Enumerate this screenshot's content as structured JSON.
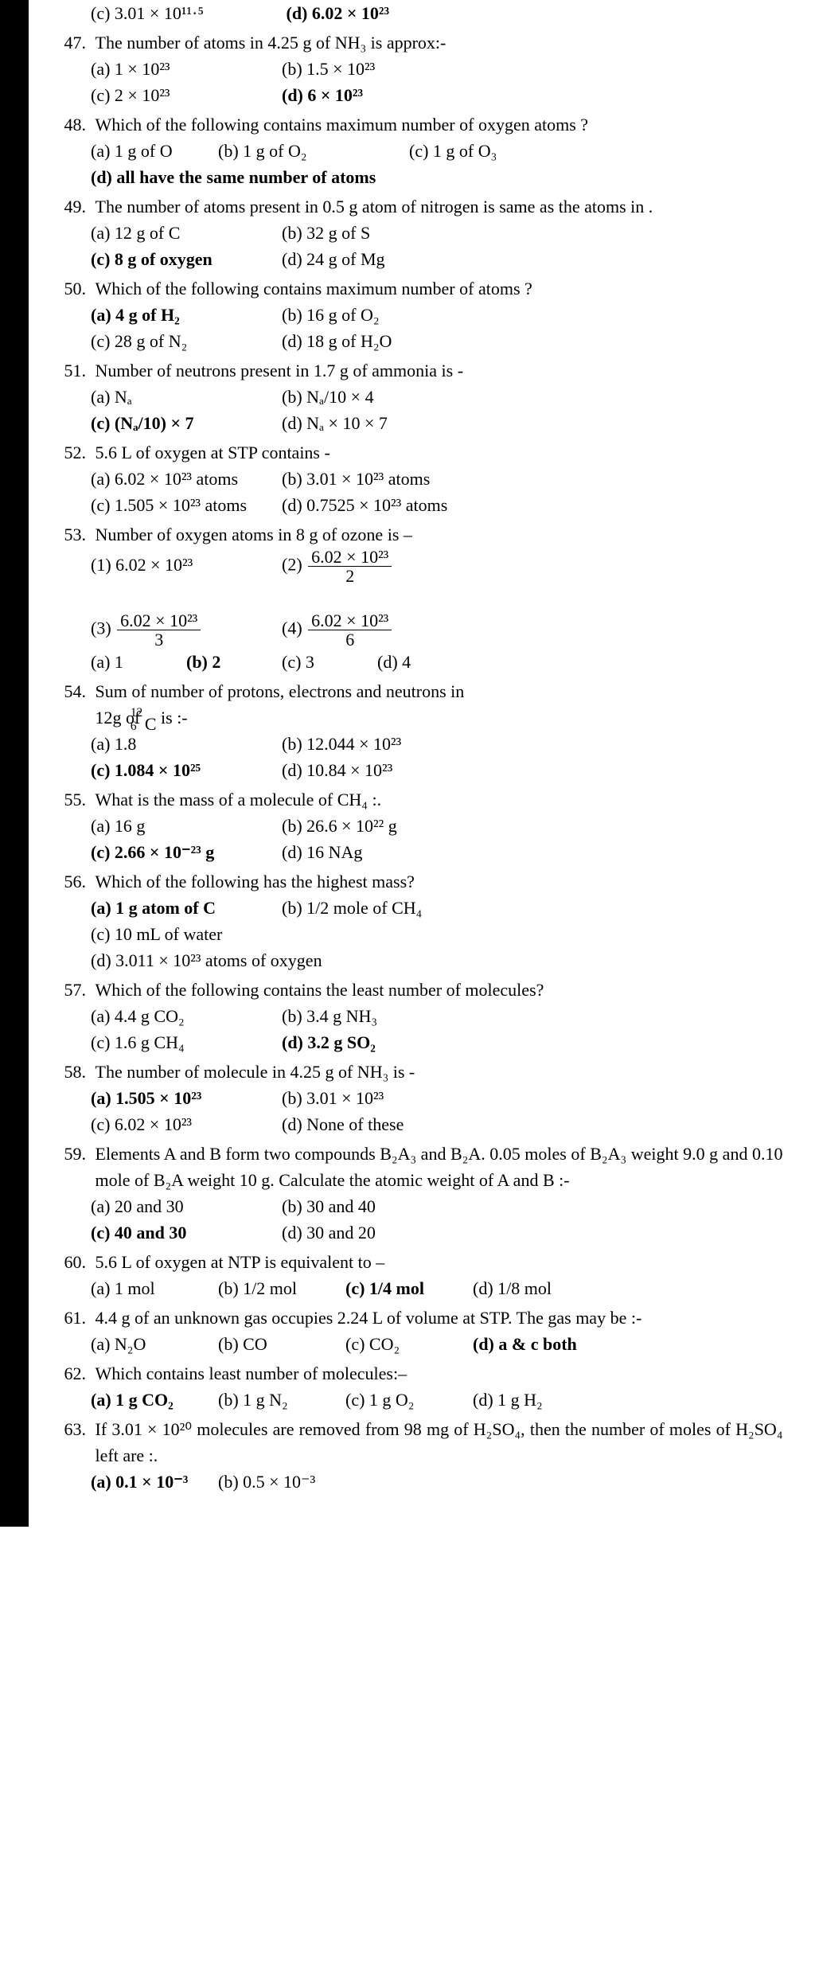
{
  "partial": {
    "opts": [
      {
        "label": "(c) 3.01 × 10¹¹·⁵",
        "bold": false
      },
      {
        "label": "(d) 6.02 × 10²³",
        "bold": true
      }
    ]
  },
  "q47": {
    "num": "47.",
    "text": "The number of atoms in 4.25 g of NH₃ is approx:-",
    "opts": [
      {
        "label": "(a) 1 × 10²³",
        "bold": false
      },
      {
        "label": "(b) 1.5 × 10²³",
        "bold": false
      },
      {
        "label": "(c) 2 × 10²³",
        "bold": false
      },
      {
        "label": "(d) 6 × 10²³",
        "bold": true
      }
    ]
  },
  "q48": {
    "num": "48.",
    "text": "Which of the following contains maximum number of oxygen atoms ?",
    "opts": [
      {
        "label": "(a) 1 g of O",
        "bold": false,
        "narrow": true
      },
      {
        "label": "(b) 1 g of O₂",
        "bold": false
      },
      {
        "label": "(c) 1 g of O₃",
        "bold": false,
        "narrow": true
      },
      {
        "label": "(d) all have the same number of atoms",
        "bold": true
      }
    ]
  },
  "q49": {
    "num": "49.",
    "text": "The number of atoms present in 0.5 g atom of nitrogen is same as the atoms in .",
    "opts": [
      {
        "label": "(a) 12 g of C",
        "bold": false
      },
      {
        "label": "(b) 32 g of S",
        "bold": false
      },
      {
        "label": "(c) 8 g of oxygen",
        "bold": true
      },
      {
        "label": "(d) 24 g of Mg",
        "bold": false
      }
    ]
  },
  "q50": {
    "num": "50.",
    "text": "Which of the following contains maximum number of atoms ?",
    "opts": [
      {
        "label": "(a) 4 g of H₂",
        "bold": true
      },
      {
        "label": "(b) 16 g of O₂",
        "bold": false
      },
      {
        "label": "(c) 28 g of N₂",
        "bold": false
      },
      {
        "label": "(d) 18 g of H₂O",
        "bold": false
      }
    ]
  },
  "q51": {
    "num": "51.",
    "text": "Number of neutrons present in 1.7 g of ammonia is -",
    "opts": [
      {
        "label": "(a) Nₐ",
        "bold": false
      },
      {
        "label": "(b) Nₐ/10 × 4",
        "bold": false
      },
      {
        "label": "(c) (Nₐ/10) × 7",
        "bold": true
      },
      {
        "label": "(d) Nₐ × 10 × 7",
        "bold": false
      }
    ]
  },
  "q52": {
    "num": "52.",
    "text": "5.6 L of oxygen at STP contains -",
    "opts": [
      {
        "label": "(a) 6.02 × 10²³ atoms",
        "bold": false,
        "wide": true
      },
      {
        "label": "(b) 3.01 × 10²³ atoms",
        "bold": false
      },
      {
        "label": "(c) 1.505 × 10²³ atoms",
        "bold": false,
        "wide": true
      },
      {
        "label": "(d) 0.7525 × 10²³ atoms",
        "bold": false
      }
    ]
  },
  "q53": {
    "num": "53.",
    "text": "Number of oxygen atoms in 8 g of ozone is –",
    "frac_opts": [
      {
        "pre": "(1) 6.02 × 10²³",
        "num": "",
        "den": ""
      },
      {
        "pre": "(2) ",
        "num": "6.02 × 10²³",
        "den": "2"
      },
      {
        "pre": "(3) ",
        "num": "6.02 × 10²³",
        "den": "3"
      },
      {
        "pre": "(4) ",
        "num": "6.02 × 10²³",
        "den": "6"
      }
    ],
    "answers": [
      {
        "label": "(a) 1",
        "bold": false
      },
      {
        "label": "(b) 2",
        "bold": true
      },
      {
        "label": "(c) 3",
        "bold": false
      },
      {
        "label": "(d) 4",
        "bold": false
      }
    ]
  },
  "q54": {
    "num": "54.",
    "text1": "Sum of number of protons, electrons and neutrons in",
    "text2a": "12g of ",
    "isotope_mass": "12",
    "isotope_z": "6",
    "isotope_el": "C",
    "text2b": " is :-",
    "opts": [
      {
        "label": "(a) 1.8",
        "bold": false
      },
      {
        "label": "(b) 12.044 × 10²³",
        "bold": false
      },
      {
        "label": "(c) 1.084 × 10²⁵",
        "bold": true
      },
      {
        "label": "(d) 10.84 × 10²³",
        "bold": false
      }
    ]
  },
  "q55": {
    "num": "55.",
    "text": "What is the mass of a molecule of CH₄ :.",
    "opts": [
      {
        "label": "(a) 16 g",
        "bold": false
      },
      {
        "label": "(b) 26.6 × 10²² g",
        "bold": false
      },
      {
        "label": "(c) 2.66 × 10⁻²³ g",
        "bold": true
      },
      {
        "label": "(d) 16 NAg",
        "bold": false
      }
    ]
  },
  "q56": {
    "num": "56.",
    "text": "Which of the following has the highest mass?",
    "opts": [
      {
        "label": "(a) 1 g atom of C",
        "bold": true
      },
      {
        "label": "(b) 1/2 mole of CH₄",
        "bold": false
      },
      {
        "label": "(c) 10 mL of water",
        "bold": false,
        "full": true
      },
      {
        "label": "(d) 3.011 × 10²³ atoms of oxygen",
        "bold": false,
        "full": true
      }
    ]
  },
  "q57": {
    "num": "57.",
    "text": "Which of the following contains the least number of molecules?",
    "opts": [
      {
        "label": "(a) 4.4 g CO₂",
        "bold": false
      },
      {
        "label": "(b) 3.4 g NH₃",
        "bold": false
      },
      {
        "label": "(c) 1.6 g CH₄",
        "bold": false
      },
      {
        "label": "(d) 3.2 g SO₂",
        "bold": true
      }
    ]
  },
  "q58": {
    "num": "58.",
    "text": "The number of molecule in 4.25 g of NH₃ is -",
    "opts": [
      {
        "label": "(a) 1.505 × 10²³",
        "bold": true
      },
      {
        "label": "(b) 3.01 × 10²³",
        "bold": false
      },
      {
        "label": "(c) 6.02 × 10²³",
        "bold": false
      },
      {
        "label": "(d) None of these",
        "bold": false
      }
    ]
  },
  "q59": {
    "num": "59.",
    "text": "Elements A and B form two compounds B₂A₃ and B₂A. 0.05 moles of B₂A₃ weight 9.0 g and 0.10 mole of B₂A weight 10 g. Calculate the atomic weight of A and B :-",
    "opts": [
      {
        "label": "(a) 20 and 30",
        "bold": false
      },
      {
        "label": "(b) 30 and 40",
        "bold": false
      },
      {
        "label": "(c) 40 and 30",
        "bold": true
      },
      {
        "label": "(d) 30 and 20",
        "bold": false
      }
    ]
  },
  "q60": {
    "num": "60.",
    "text": "5.6 L of oxygen at NTP is equivalent to –",
    "opts": [
      {
        "label": "(a) 1 mol",
        "bold": false,
        "narrow": true
      },
      {
        "label": "(b) 1/2 mol",
        "bold": false,
        "narrow": true
      },
      {
        "label": "(c) 1/4 mol",
        "bold": true,
        "narrow": true
      },
      {
        "label": "(d) 1/8 mol",
        "bold": false,
        "narrow": true
      }
    ]
  },
  "q61": {
    "num": "61.",
    "text": "4.4 g of an unknown gas occupies 2.24 L of volume at STP. The gas may be :-",
    "opts": [
      {
        "label": "(a) N₂O",
        "bold": false,
        "narrow": true
      },
      {
        "label": "(b) CO",
        "bold": false,
        "narrow": true
      },
      {
        "label": "(c) CO₂",
        "bold": false,
        "narrow": true
      },
      {
        "label": "(d) a & c both",
        "bold": true,
        "narrow": true
      }
    ]
  },
  "q62": {
    "num": "62.",
    "text": "Which contains least number of molecules:–",
    "opts": [
      {
        "label": "(a) 1 g CO₂",
        "bold": true,
        "narrow": true
      },
      {
        "label": "(b) 1 g N₂",
        "bold": false,
        "narrow": true
      },
      {
        "label": "(c) 1 g O₂",
        "bold": false,
        "narrow": true
      },
      {
        "label": "(d) 1 g H₂",
        "bold": false,
        "narrow": true
      }
    ]
  },
  "q63": {
    "num": "63.",
    "text": "If 3.01 × 10²⁰ molecules are removed from 98 mg of H₂SO₄, then the number of moles of H₂SO₄ left are :.",
    "opts": [
      {
        "label": "(a) 0.1 × 10⁻³",
        "bold": true,
        "narrow": true
      },
      {
        "label": "(b) 0.5 × 10⁻³",
        "bold": false,
        "narrow": true
      }
    ]
  }
}
